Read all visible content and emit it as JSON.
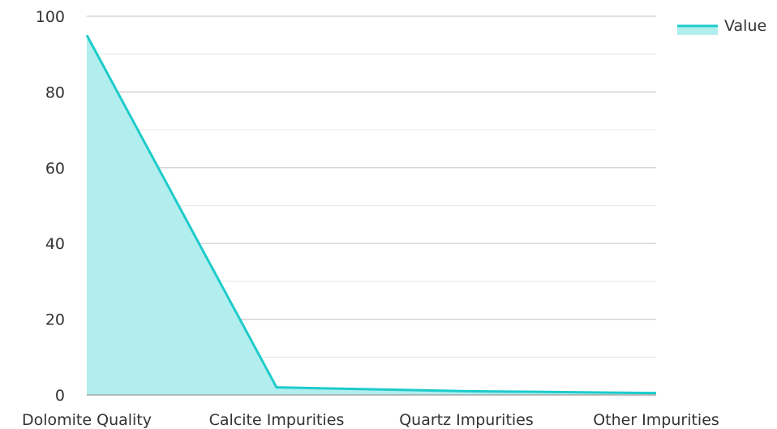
{
  "chart_data": {
    "type": "area",
    "categories": [
      "Dolomite Quality",
      "Calcite Impurities",
      "Quartz Impurities",
      "Other Impurities"
    ],
    "series": [
      {
        "name": "Value",
        "values": [
          95,
          2,
          1,
          0.5
        ]
      }
    ],
    "y_ticks": [
      0,
      20,
      40,
      60,
      80,
      100
    ],
    "ylim": [
      0,
      100
    ],
    "grid": true,
    "legend_position": "top-right",
    "colors": {
      "line": "#1ecbcb",
      "fill": "#b2eeee",
      "grid": "#cccccc",
      "axis": "#999999",
      "text": "#333333"
    }
  }
}
